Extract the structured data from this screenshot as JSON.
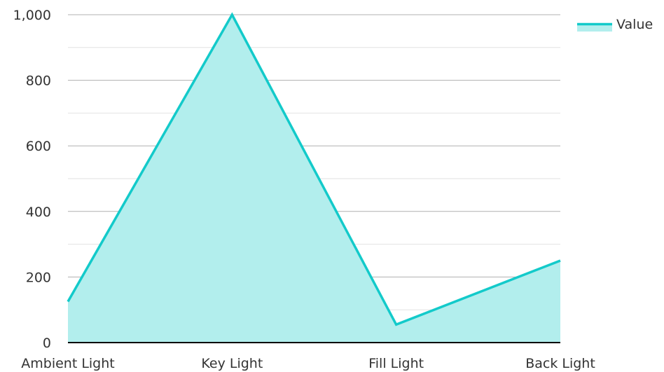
{
  "chart_data": {
    "type": "area",
    "title": "",
    "xlabel": "",
    "ylabel": "",
    "categories": [
      "Ambient Light",
      "Key Light",
      "Fill Light",
      "Back Light"
    ],
    "series": [
      {
        "name": "Value",
        "values": [
          125,
          1000,
          55,
          250
        ],
        "line_color": "#13CACA",
        "fill_color": "#B2EEED"
      }
    ],
    "ylim": [
      0,
      1000
    ],
    "yticks": [
      0,
      200,
      400,
      600,
      800,
      1000
    ],
    "ytick_labels": [
      "0",
      "200",
      "400",
      "600",
      "800",
      "1,000"
    ],
    "grid": true,
    "minor_grid": true,
    "legend": "top-right",
    "colors": {
      "major_grid": "#b0b0b0",
      "minor_grid": "#e2e2e2",
      "axis": "#000000",
      "text": "#333333"
    }
  }
}
